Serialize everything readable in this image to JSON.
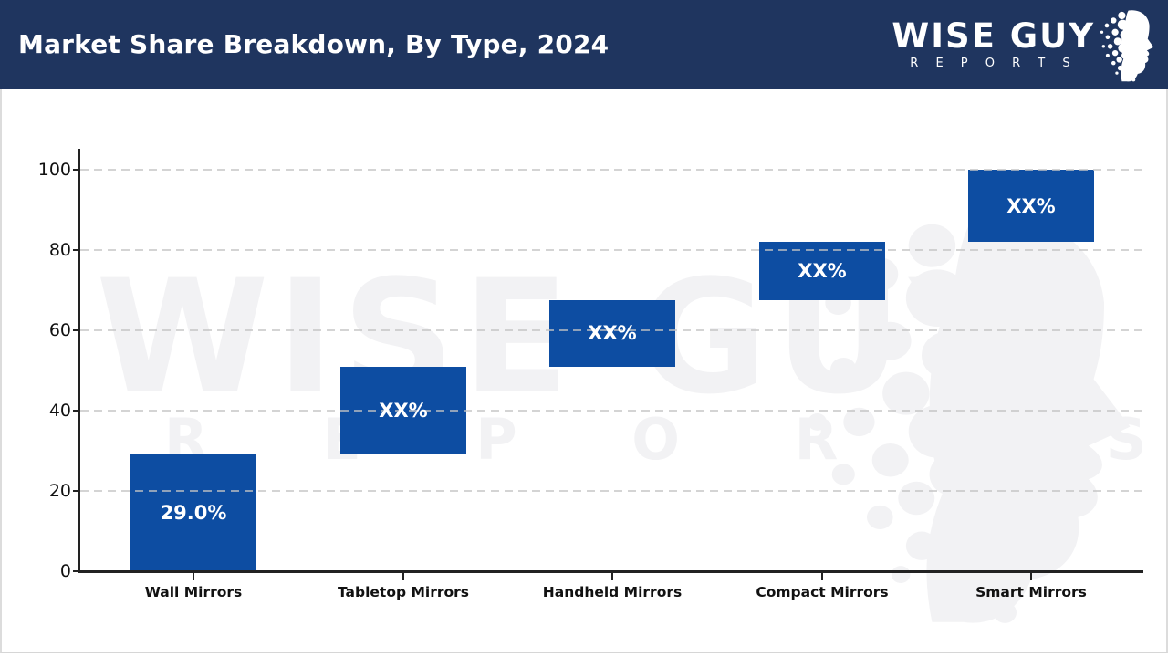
{
  "header": {
    "title": "Market Share Breakdown, By Type, 2024",
    "logo_line1": "WISE GUY",
    "logo_line2": "R E P O R T S",
    "logo_head_icon": "dotted-head-profile-icon"
  },
  "watermark": {
    "line1": "WISE GUY",
    "line2": "R E P O R T S",
    "head_icon": "dotted-head-profile-watermark"
  },
  "colors": {
    "header_bg": "#1f355f",
    "header_text": "#ffffff",
    "bar": "#0d4da2",
    "bar_label_text": "#ffffff",
    "axis": "#222222",
    "grid": "rgba(195,195,195,0.72)",
    "watermark": "#f2f2f4",
    "tick_text": "#111111"
  },
  "chart_data": {
    "type": "bar",
    "subtype": "waterfall-floating-segments",
    "title": "Market Share Breakdown, By Type, 2024",
    "xlabel": "",
    "ylabel": "",
    "ylim": [
      0,
      100
    ],
    "yticks": [
      0,
      20,
      40,
      60,
      80,
      100
    ],
    "grid": "horizontal-dashed",
    "legend": "none",
    "categories": [
      "Wall Mirrors",
      "Tabletop Mirrors",
      "Handheld Mirrors",
      "Compact Mirrors",
      "Smart Mirrors"
    ],
    "segments": [
      {
        "category": "Wall Mirrors",
        "start": 0,
        "end": 29,
        "value_shown": "29.0%"
      },
      {
        "category": "Tabletop Mirrors",
        "start": 29,
        "end": 51,
        "value_shown": "XX%"
      },
      {
        "category": "Handheld Mirrors",
        "start": 51,
        "end": 67.5,
        "value_shown": "XX%"
      },
      {
        "category": "Compact Mirrors",
        "start": 67.5,
        "end": 82,
        "value_shown": "XX%"
      },
      {
        "category": "Smart Mirrors",
        "start": 82,
        "end": 100,
        "value_shown": "XX%"
      }
    ]
  }
}
